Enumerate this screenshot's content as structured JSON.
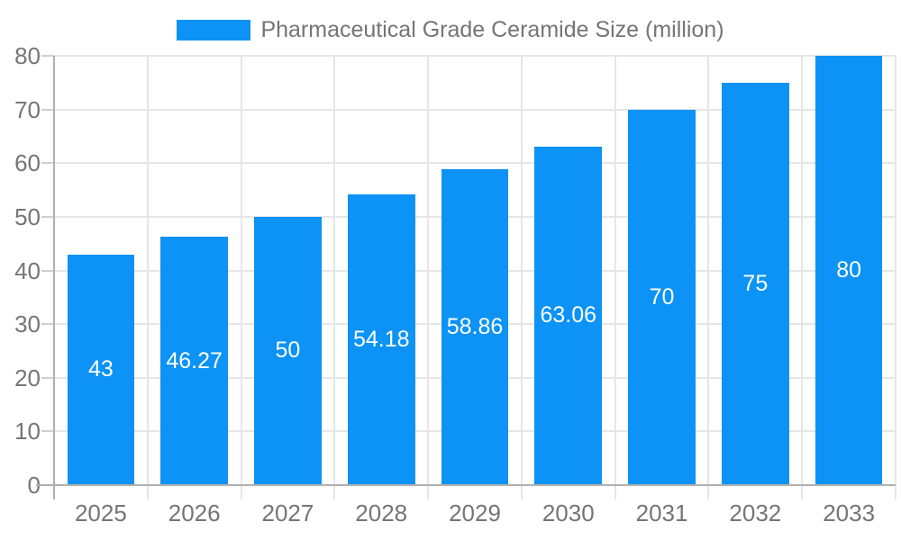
{
  "chart_data": {
    "type": "bar",
    "title": "Pharmaceutical Grade Ceramide Size (million)",
    "categories": [
      "2025",
      "2026",
      "2027",
      "2028",
      "2029",
      "2030",
      "2031",
      "2032",
      "2033"
    ],
    "values": [
      43,
      46.27,
      50,
      54.18,
      58.86,
      63.06,
      70,
      75,
      80
    ],
    "labels": [
      "43",
      "46.27",
      "50",
      "54.18",
      "58.86",
      "63.06",
      "70",
      "75",
      "80"
    ],
    "xlabel": "",
    "ylabel": "",
    "ylim": [
      0,
      80
    ],
    "y_ticks": [
      0,
      10,
      20,
      30,
      40,
      50,
      60,
      70,
      80
    ],
    "grid": "both",
    "legend_position": "top-center",
    "value_label_position": "inside-center",
    "colors": {
      "bar": "#0c93f5",
      "bar_label": "#ffffff",
      "grid": "#e6e6e6",
      "axis": "#b0b0b0",
      "tick": "#cfcfcf",
      "text": "#757575",
      "background": "#ffffff"
    }
  }
}
